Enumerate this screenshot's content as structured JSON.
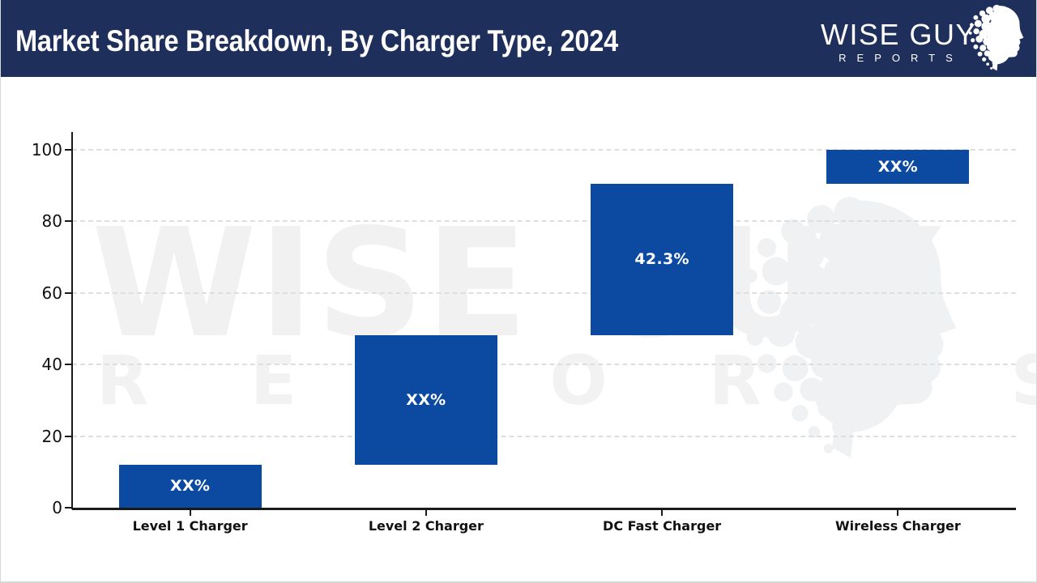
{
  "header": {
    "title": "Market Share Breakdown, By Charger Type, 2024",
    "logo": {
      "name_top": "WISE GUY",
      "name_bottom": "REPORTS"
    }
  },
  "watermark": {
    "line1": "WISE GUY",
    "line2": "R E P O R T S"
  },
  "chart_data": {
    "type": "bar",
    "subtype": "floating-waterfall",
    "title": "Market Share Breakdown, By Charger Type, 2024",
    "categories": [
      "Level 1 Charger",
      "Level 2 Charger",
      "DC Fast Charger",
      "Wireless Charger"
    ],
    "bars": [
      {
        "category": "Level 1 Charger",
        "start": 0,
        "end": 12,
        "label": "XX%"
      },
      {
        "category": "Level 2 Charger",
        "start": 12,
        "end": 48.3,
        "label": "XX%"
      },
      {
        "category": "DC Fast Charger",
        "start": 48.3,
        "end": 90.6,
        "label": "42.3%",
        "value": 42.3
      },
      {
        "category": "Wireless Charger",
        "start": 90.6,
        "end": 100,
        "label": "XX%"
      }
    ],
    "xlabel": "",
    "ylabel": "",
    "yticks": [
      0,
      20,
      40,
      60,
      80,
      100
    ],
    "ylim": [
      0,
      105
    ],
    "grid": "horizontal-dashed",
    "legend": null,
    "bar_color": "#0C4AA2",
    "unit": "%"
  },
  "colors": {
    "header_bg": "#1F2F5C",
    "bar": "#0C4AA2",
    "grid": "#DEDEDE",
    "axis": "#1A1A1A",
    "watermark": "#F1F1F1"
  }
}
